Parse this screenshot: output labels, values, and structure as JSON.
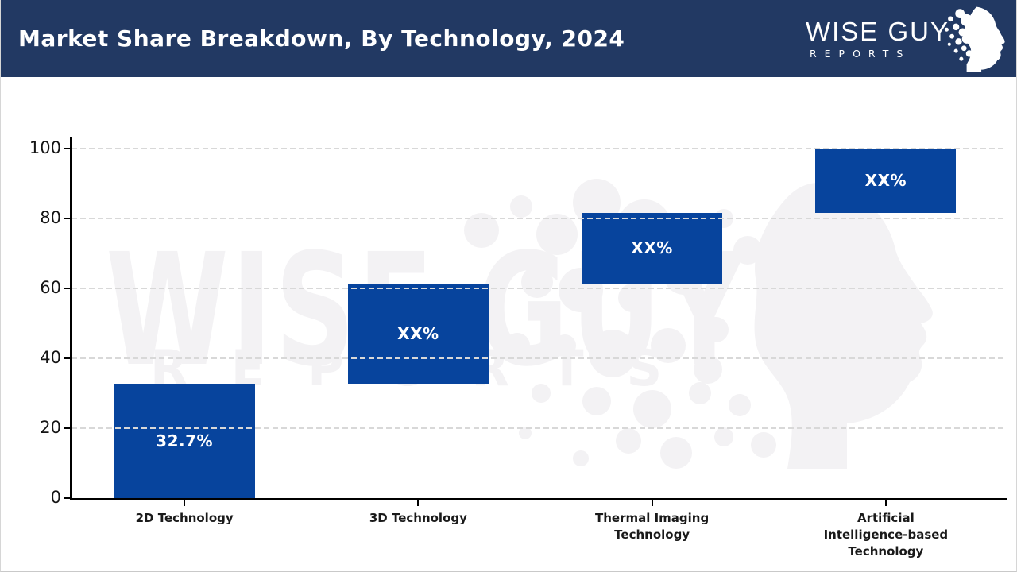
{
  "header": {
    "title": "Market Share Breakdown, By Technology, 2024",
    "logo": {
      "line1": "WISE GUY",
      "line2": "REPORTS"
    }
  },
  "watermark": {
    "line1": "WISE GUY",
    "line2": "REPORTS"
  },
  "chart_data": {
    "type": "bar",
    "subtype": "floating-waterfall",
    "title": "Market Share Breakdown, By Technology, 2024",
    "categories": [
      "2D Technology",
      "3D Technology",
      "Thermal Imaging\nTechnology",
      "Artificial\nIntelligence-based\nTechnology"
    ],
    "bars": [
      {
        "category": "2D Technology",
        "start": 0,
        "end": 32.7,
        "label": "32.7%"
      },
      {
        "category": "3D Technology",
        "start": 32.7,
        "end": 61.3,
        "label": "XX%"
      },
      {
        "category": "Thermal Imaging Technology",
        "start": 61.3,
        "end": 81.7,
        "label": "XX%"
      },
      {
        "category": "Artificial Intelligence-based Technology",
        "start": 81.7,
        "end": 100,
        "label": "XX%"
      }
    ],
    "ylim": [
      0,
      100
    ],
    "yticks": [
      0,
      20,
      40,
      60,
      80,
      100
    ],
    "xlabel": "",
    "ylabel": "",
    "grid": "horizontal-dashed",
    "legend": "none",
    "bar_color": "#07449d",
    "bar_label_color": "#ffffff"
  },
  "colors": {
    "header_bg": "#223963",
    "bar_blue": "#07449d",
    "gridline": "#d8d8d8",
    "axis": "#000000",
    "watermark": "#f3f2f4"
  }
}
